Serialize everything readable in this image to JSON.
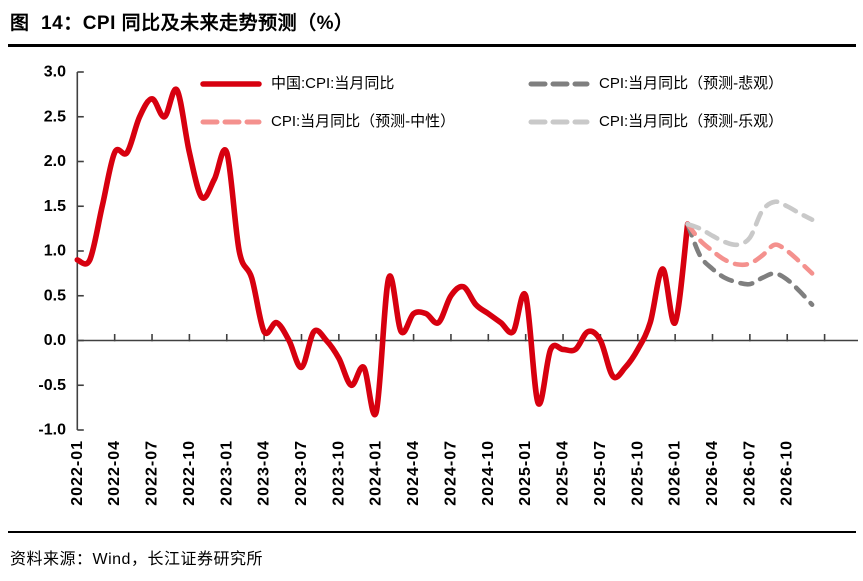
{
  "title": "图  14：CPI 同比及未来走势预测（%）",
  "source_note": "资料来源：Wind，长江证券研究所",
  "colors": {
    "actual": "#d7000f",
    "pessimistic": "#7f7f7f",
    "neutral": "#f4918e",
    "optimistic": "#c9c9c9",
    "axis": "#404040",
    "text": "#000000",
    "rule": "#000000"
  },
  "chart_data": {
    "type": "line",
    "title": "图  14：CPI 同比及未来走势预测（%）",
    "xlabel": "",
    "ylabel": "",
    "ylim": [
      -1.0,
      3.0
    ],
    "y_ticks": [
      3.0,
      2.5,
      2.0,
      1.5,
      1.0,
      0.5,
      0.0,
      -0.5,
      -1.0
    ],
    "x_start_month": "2022-01",
    "x_months_total": 61,
    "x_tick_step_months": 3,
    "x_tick_labels": [
      "2022-01",
      "2022-04",
      "2022-07",
      "2022-10",
      "2023-01",
      "2023-04",
      "2023-07",
      "2023-10",
      "2024-01",
      "2024-04",
      "2024-07",
      "2024-10",
      "2025-01",
      "2025-04",
      "2025-07",
      "2025-10",
      "2026-01",
      "2026-04",
      "2026-07",
      "2026-10"
    ],
    "grid": false,
    "legend_position": "top-inside",
    "series": [
      {
        "name": "中国:CPI:当月同比",
        "key": "actual",
        "style": "solid",
        "color_key": "actual",
        "start_index": 0,
        "values": [
          0.9,
          0.9,
          1.5,
          2.1,
          2.1,
          2.5,
          2.7,
          2.5,
          2.8,
          2.1,
          1.6,
          1.8,
          2.1,
          1.0,
          0.7,
          0.1,
          0.2,
          0.0,
          -0.3,
          0.1,
          0.0,
          -0.2,
          -0.5,
          -0.3,
          -0.8,
          0.7,
          0.1,
          0.3,
          0.3,
          0.2,
          0.5,
          0.6,
          0.4,
          0.3,
          0.2,
          0.1,
          0.5,
          -0.7,
          -0.1,
          -0.1,
          -0.1,
          0.1,
          0.0,
          -0.4,
          -0.3,
          -0.1,
          0.2,
          0.8,
          0.2,
          1.3
        ]
      },
      {
        "name": "CPI:当月同比（预测-悲观）",
        "key": "pessimistic",
        "style": "dashed",
        "color_key": "pessimistic",
        "start_index": 49,
        "values": [
          1.3,
          0.95,
          0.8,
          0.7,
          0.65,
          0.63,
          0.7,
          0.75,
          0.68,
          0.55,
          0.4
        ]
      },
      {
        "name": "CPI:当月同比（预测-中性）",
        "key": "neutral",
        "style": "dashed",
        "color_key": "neutral",
        "start_index": 49,
        "values": [
          1.3,
          1.12,
          1.0,
          0.9,
          0.85,
          0.86,
          0.95,
          1.07,
          1.0,
          0.88,
          0.75
        ]
      },
      {
        "name": "CPI:当月同比（预测-乐观）",
        "key": "optimistic",
        "style": "dashed",
        "color_key": "optimistic",
        "start_index": 49,
        "values": [
          1.3,
          1.25,
          1.17,
          1.1,
          1.07,
          1.15,
          1.45,
          1.55,
          1.5,
          1.42,
          1.35
        ]
      }
    ],
    "legend_order": [
      0,
      1,
      2,
      3
    ]
  }
}
